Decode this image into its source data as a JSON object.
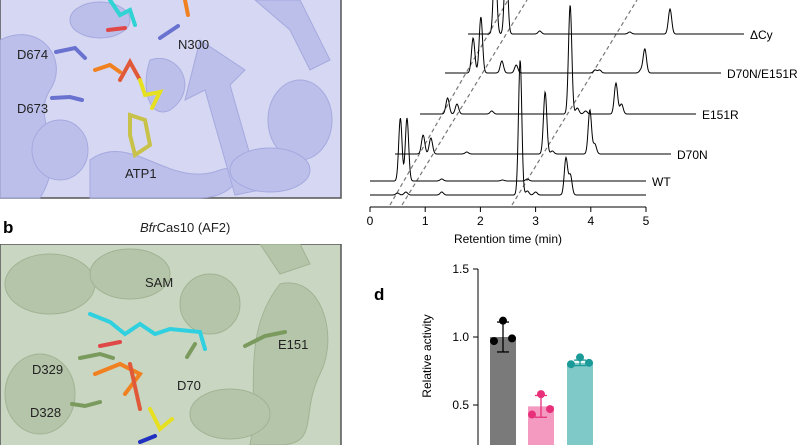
{
  "panel_a": {
    "residue_labels": [
      "D674",
      "N300",
      "D673",
      "ATP1"
    ],
    "ribbon_color": "#c5c8ee"
  },
  "panel_b": {
    "letter": "b",
    "title_italic": "Bfr",
    "title_rest": "Cas10 (AF2)",
    "residue_labels": [
      "SAM",
      "E151",
      "D329",
      "D70",
      "D328"
    ],
    "ribbon_color": "#bccbb2"
  },
  "chart_data": [
    {
      "type": "line",
      "title": "",
      "xlabel": "Retention time (min)",
      "ylabel": "",
      "xlim": [
        0,
        5
      ],
      "xticks": [
        "0",
        "1",
        "2",
        "3",
        "4",
        "5"
      ],
      "grid": false,
      "layout": "stacked, offset diagonally",
      "series": [
        {
          "name": "",
          "peaks": [
            [
              0.5,
              2
            ],
            [
              0.65,
              3
            ],
            [
              1.3,
              3
            ],
            [
              2.72,
              135
            ],
            [
              2.85,
              4
            ],
            [
              3.0,
              3
            ],
            [
              3.55,
              37
            ],
            [
              3.63,
              20
            ]
          ]
        },
        {
          "name": "WT",
          "peaks": [
            [
              0.55,
              63
            ],
            [
              0.67,
              63
            ],
            [
              1.3,
              2
            ],
            [
              2.4,
              1
            ],
            [
              2.85,
              2
            ]
          ]
        },
        {
          "name": "D70N",
          "peaks": [
            [
              0.51,
              19
            ],
            [
              0.65,
              16
            ],
            [
              1.3,
              2
            ],
            [
              2.72,
              62
            ],
            [
              2.85,
              3
            ],
            [
              3.53,
              44
            ],
            [
              3.62,
              10
            ]
          ]
        },
        {
          "name": "E151R",
          "peaks": [
            [
              0.5,
              16
            ],
            [
              0.67,
              10
            ],
            [
              1.3,
              3
            ],
            [
              2.72,
              109
            ],
            [
              2.85,
              6
            ],
            [
              3.0,
              3
            ],
            [
              3.55,
              31
            ],
            [
              3.65,
              10
            ]
          ]
        },
        {
          "name": "D70N/E151R",
          "peaks": [
            [
              0.51,
              35
            ],
            [
              0.65,
              56
            ],
            [
              1.03,
              12
            ],
            [
              1.29,
              8
            ],
            [
              2.72,
              3
            ],
            [
              2.8,
              3
            ],
            [
              3.62,
              24
            ],
            [
              3.55,
              3
            ]
          ]
        },
        {
          "name": "ΔCy",
          "peaks": [
            [
              0.49,
              80
            ],
            [
              0.69,
              80
            ],
            [
              1.3,
              3
            ],
            [
              2.93,
              2
            ],
            [
              3.66,
              25
            ]
          ]
        }
      ],
      "dashed_guides": 3
    },
    {
      "type": "bar",
      "panel_letter": "d",
      "title": "",
      "xlabel": "",
      "ylabel": "Relative activity",
      "ylim_visible": [
        0.3,
        1.5
      ],
      "yticks": [
        "0.5",
        "1.0",
        "1.5"
      ],
      "bars": [
        {
          "value": 1.0,
          "err": [
            0.89,
            1.11
          ],
          "points": [
            1.12,
            0.97,
            0.99
          ],
          "color": "#7a7a7a",
          "point_color": "#000000"
        },
        {
          "value": 0.49,
          "err": [
            0.41,
            0.57
          ],
          "points": [
            0.58,
            0.43,
            0.47
          ],
          "color": "#f49ac1",
          "point_color": "#e8307a"
        },
        {
          "value": 0.81,
          "err": [
            0.79,
            0.83
          ],
          "points": [
            0.85,
            0.8,
            0.81
          ],
          "color": "#7fc9c9",
          "point_color": "#1a9a98"
        }
      ]
    }
  ]
}
